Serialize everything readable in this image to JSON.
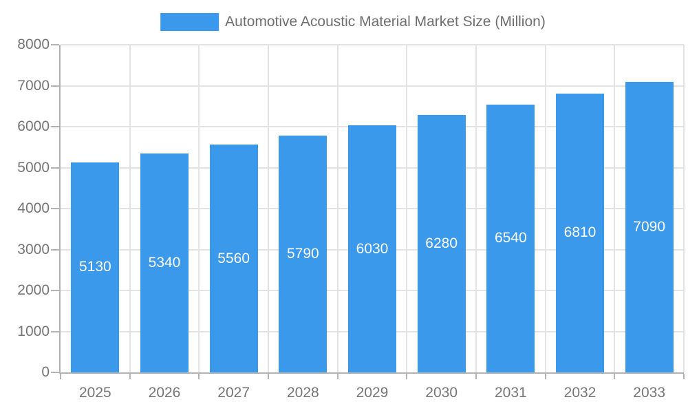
{
  "legend": {
    "label": "Automotive Acoustic Material Market Size (Million)"
  },
  "chart_data": {
    "type": "bar",
    "title": "Automotive Acoustic Material Market Size (Million)",
    "categories": [
      "2025",
      "2026",
      "2027",
      "2028",
      "2029",
      "2030",
      "2031",
      "2032",
      "2033"
    ],
    "values": [
      5130,
      5340,
      5560,
      5790,
      6030,
      6280,
      6540,
      6810,
      7090
    ],
    "xlabel": "",
    "ylabel": "",
    "ylim": [
      0,
      8000
    ],
    "ytick_step": 1000,
    "grid": true,
    "legend_position": "top",
    "value_labels": "inside-center",
    "colors": {
      "bar": "#3B99EC",
      "value_label": "#FFFFFF",
      "axis_text": "#757575",
      "legend_text": "#6E6E6E",
      "gridline": "#E3E3E3",
      "axis_line": "#B3B3B3",
      "background": "#FFFFFF"
    }
  }
}
